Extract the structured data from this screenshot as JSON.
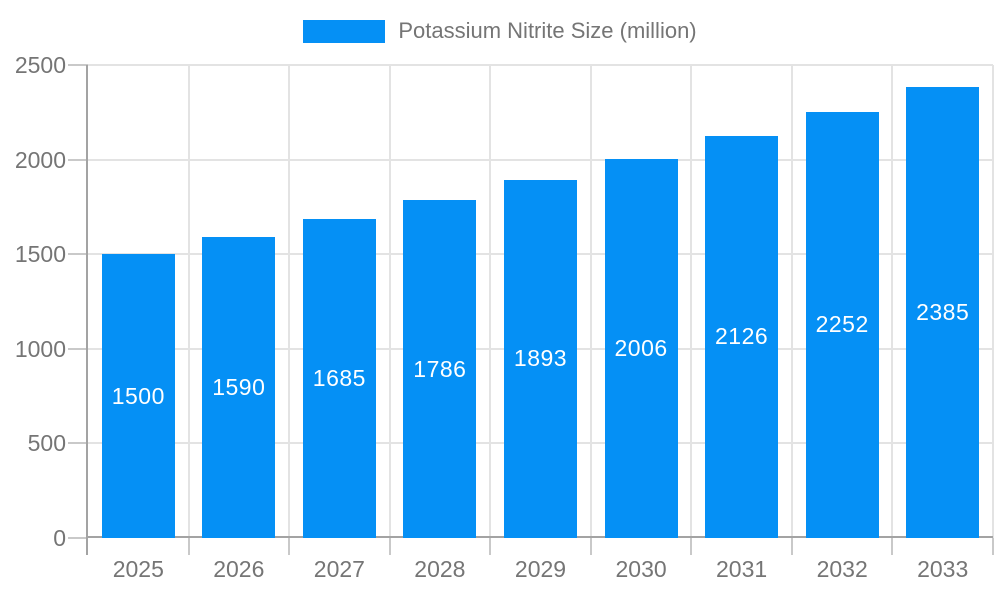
{
  "colors": {
    "bar": "#0590f5",
    "grid": "#e3e3e3",
    "axis": "#a3a3a3",
    "tick": "#c9c9c9",
    "text": "#757575",
    "bar_label": "#ffffff",
    "background": "#ffffff"
  },
  "legend": {
    "label": "Potassium Nitrite Size (million)"
  },
  "chart_data": {
    "type": "bar",
    "title": "Potassium Nitrite Size (million)",
    "series_name": "Potassium Nitrite Size (million)",
    "categories": [
      "2025",
      "2026",
      "2027",
      "2028",
      "2029",
      "2030",
      "2031",
      "2032",
      "2033"
    ],
    "values": [
      1500,
      1590,
      1685,
      1786,
      1893,
      2006,
      2126,
      2252,
      2385
    ],
    "xlabel": "",
    "ylabel": "",
    "ylim": [
      0,
      2500
    ],
    "yticks": [
      0,
      500,
      1000,
      1500,
      2000,
      2500
    ],
    "grid": true,
    "legend_position": "top",
    "value_labels": "inside-center"
  }
}
